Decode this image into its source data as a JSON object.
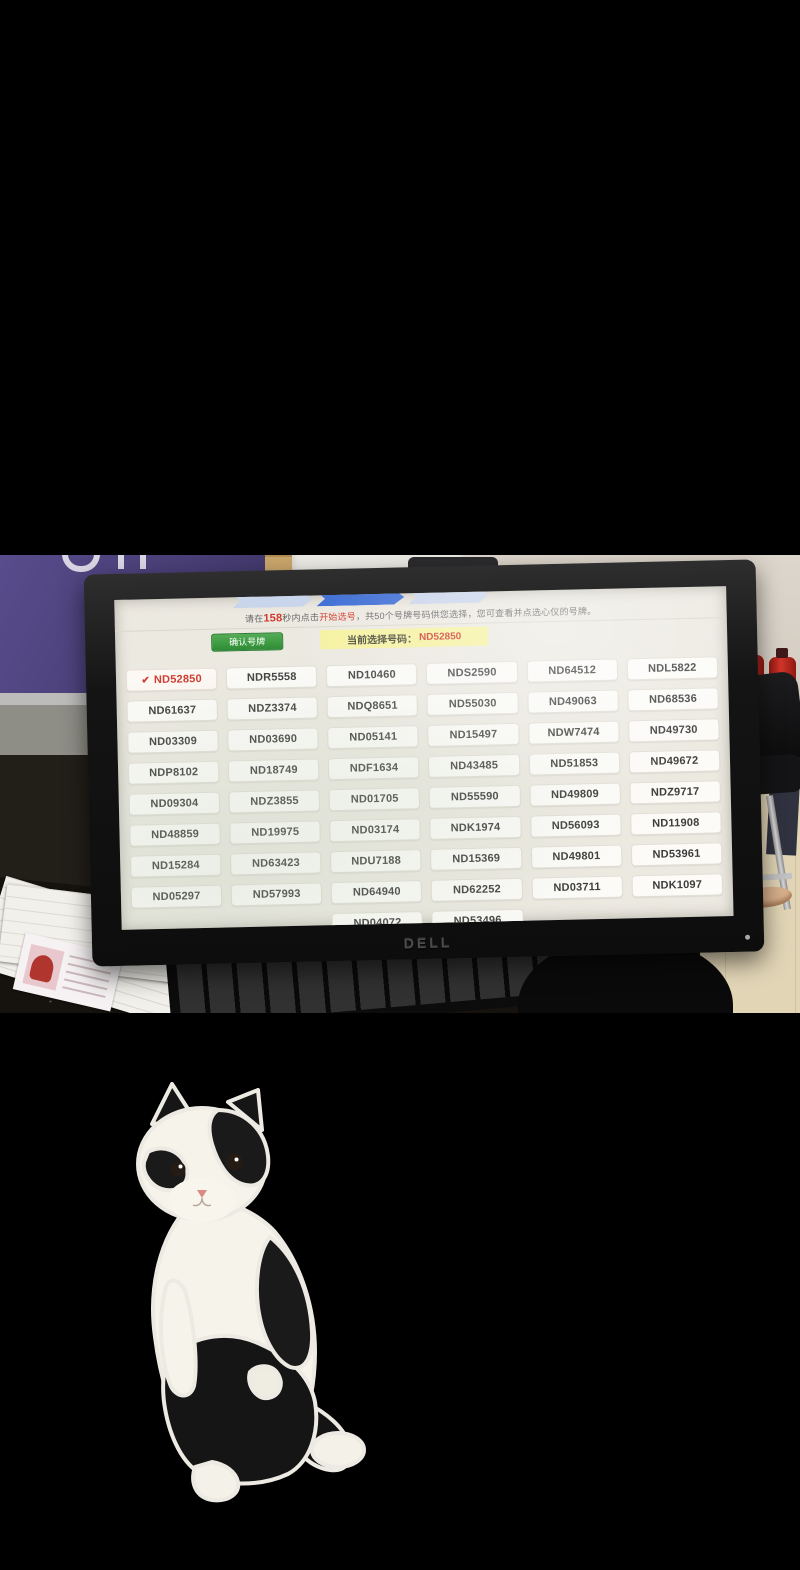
{
  "photo": {
    "monitor_brand": "DELL"
  },
  "screen": {
    "timer": {
      "prefix": "请在",
      "seconds": "158",
      "mid": "秒内点击",
      "action": "开始选号",
      "suffix": "，共50个号牌号码供您选择，您可查看并点选心仪的号牌。"
    },
    "confirm_button_label": "确认号牌",
    "current_selection_label": "当前选择号码：",
    "current_selection_value": "ND52850",
    "selected_plate": "ND52850",
    "plate_rows": [
      [
        "ND52850",
        "NDR5558",
        "ND10460",
        "NDS2590",
        "ND64512",
        "NDL5822"
      ],
      [
        "ND61637",
        "NDZ3374",
        "NDQ8651",
        "ND55030",
        "ND49063",
        "ND68536"
      ],
      [
        "ND03309",
        "ND03690",
        "ND05141",
        "ND15497",
        "NDW7474",
        "ND49730"
      ],
      [
        "NDP8102",
        "ND18749",
        "NDF1634",
        "ND43485",
        "ND51853",
        "ND49672"
      ],
      [
        "ND09304",
        "NDZ3855",
        "ND01705",
        "ND55590",
        "ND49809",
        "NDZ9717"
      ],
      [
        "ND48859",
        "ND19975",
        "ND03174",
        "NDK1974",
        "ND56093",
        "ND11908"
      ],
      [
        "ND15284",
        "ND63423",
        "NDU7188",
        "ND15369",
        "ND49801",
        "ND53961"
      ],
      [
        "ND05297",
        "ND57993",
        "ND64940",
        "ND62252",
        "ND03711",
        "NDK1097"
      ],
      [
        "",
        "",
        "ND04072",
        "ND53496",
        "",
        ""
      ]
    ],
    "colors": {
      "confirm_green": "#3f9e44",
      "highlight_yellow": "#f6f2a0",
      "selected_red": "#cf3a2e",
      "stepper_blue": "#3c6cd4",
      "stepper_light": "#c9d5eb"
    }
  }
}
